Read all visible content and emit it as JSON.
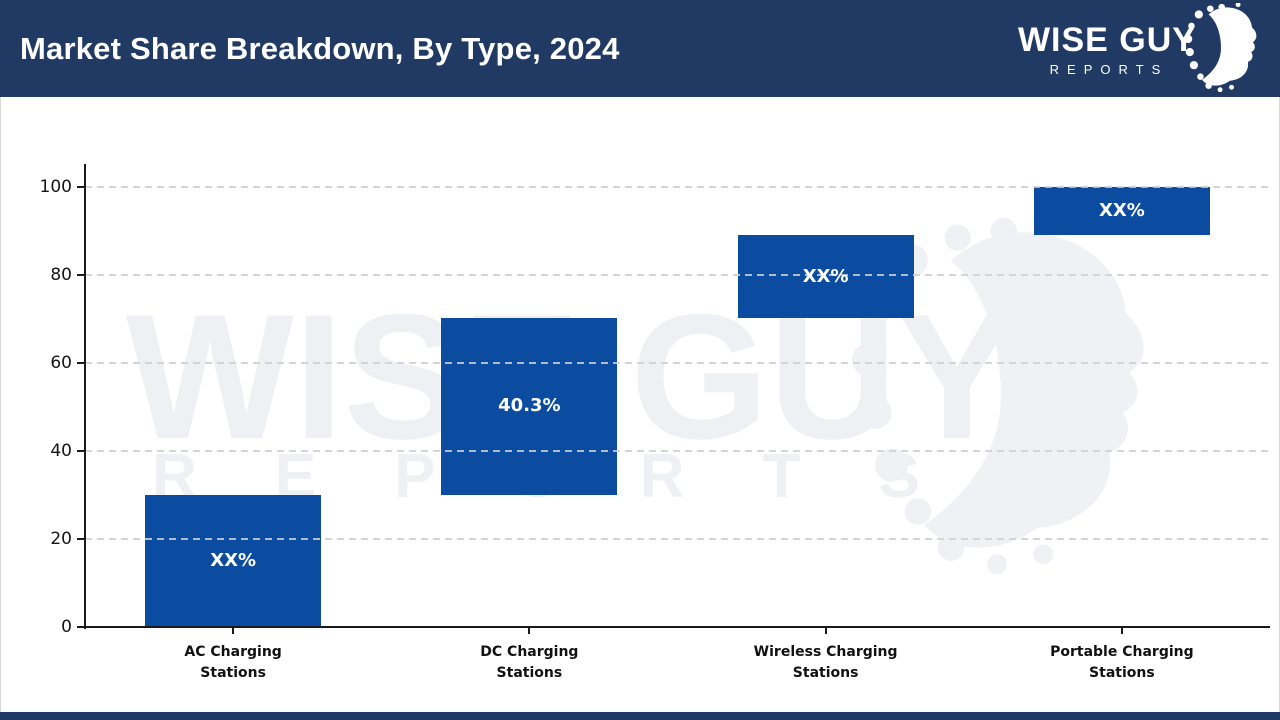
{
  "header": {
    "title": "Market Share Breakdown, By Type, 2024",
    "logo": {
      "brand": "WISE GUY",
      "sub": "REPORTS"
    }
  },
  "watermark": {
    "brand": "WISE GUY",
    "sub": "REPORTS"
  },
  "chart_data": {
    "type": "bar",
    "variant": "waterfall",
    "title": "Market Share Breakdown, By Type, 2024",
    "categories": [
      "AC Charging Stations",
      "DC Charging Stations",
      "Wireless Charging Stations",
      "Portable Charging Stations"
    ],
    "bars": [
      {
        "category": "AC Charging Stations",
        "start": 0,
        "end": 30,
        "size": 30,
        "label": "XX%"
      },
      {
        "category": "DC Charging Stations",
        "start": 30,
        "end": 70.3,
        "size": 40.3,
        "label": "40.3%"
      },
      {
        "category": "Wireless Charging Stations",
        "start": 70.3,
        "end": 89,
        "size": 18.7,
        "label": "XX%"
      },
      {
        "category": "Portable Charging Stations",
        "start": 89,
        "end": 100,
        "size": 11,
        "label": "XX%"
      }
    ],
    "ylim": [
      0,
      100
    ],
    "yticks": [
      0,
      20,
      40,
      60,
      80,
      100
    ],
    "xlabel": "",
    "ylabel": "",
    "grid": "horizontal dashed, drawn over bars",
    "legend": "none",
    "bar_color": "#0c4ca0",
    "bar_label_color": "#ffffff"
  },
  "colors": {
    "header_bg": "#213a64",
    "footer_bg": "#213a64",
    "title_text": "#ffffff",
    "bar": "#0c4ca0",
    "grid": "#cfcfcf",
    "axis": "#1a1a1a",
    "watermark": "#eef0f3"
  }
}
